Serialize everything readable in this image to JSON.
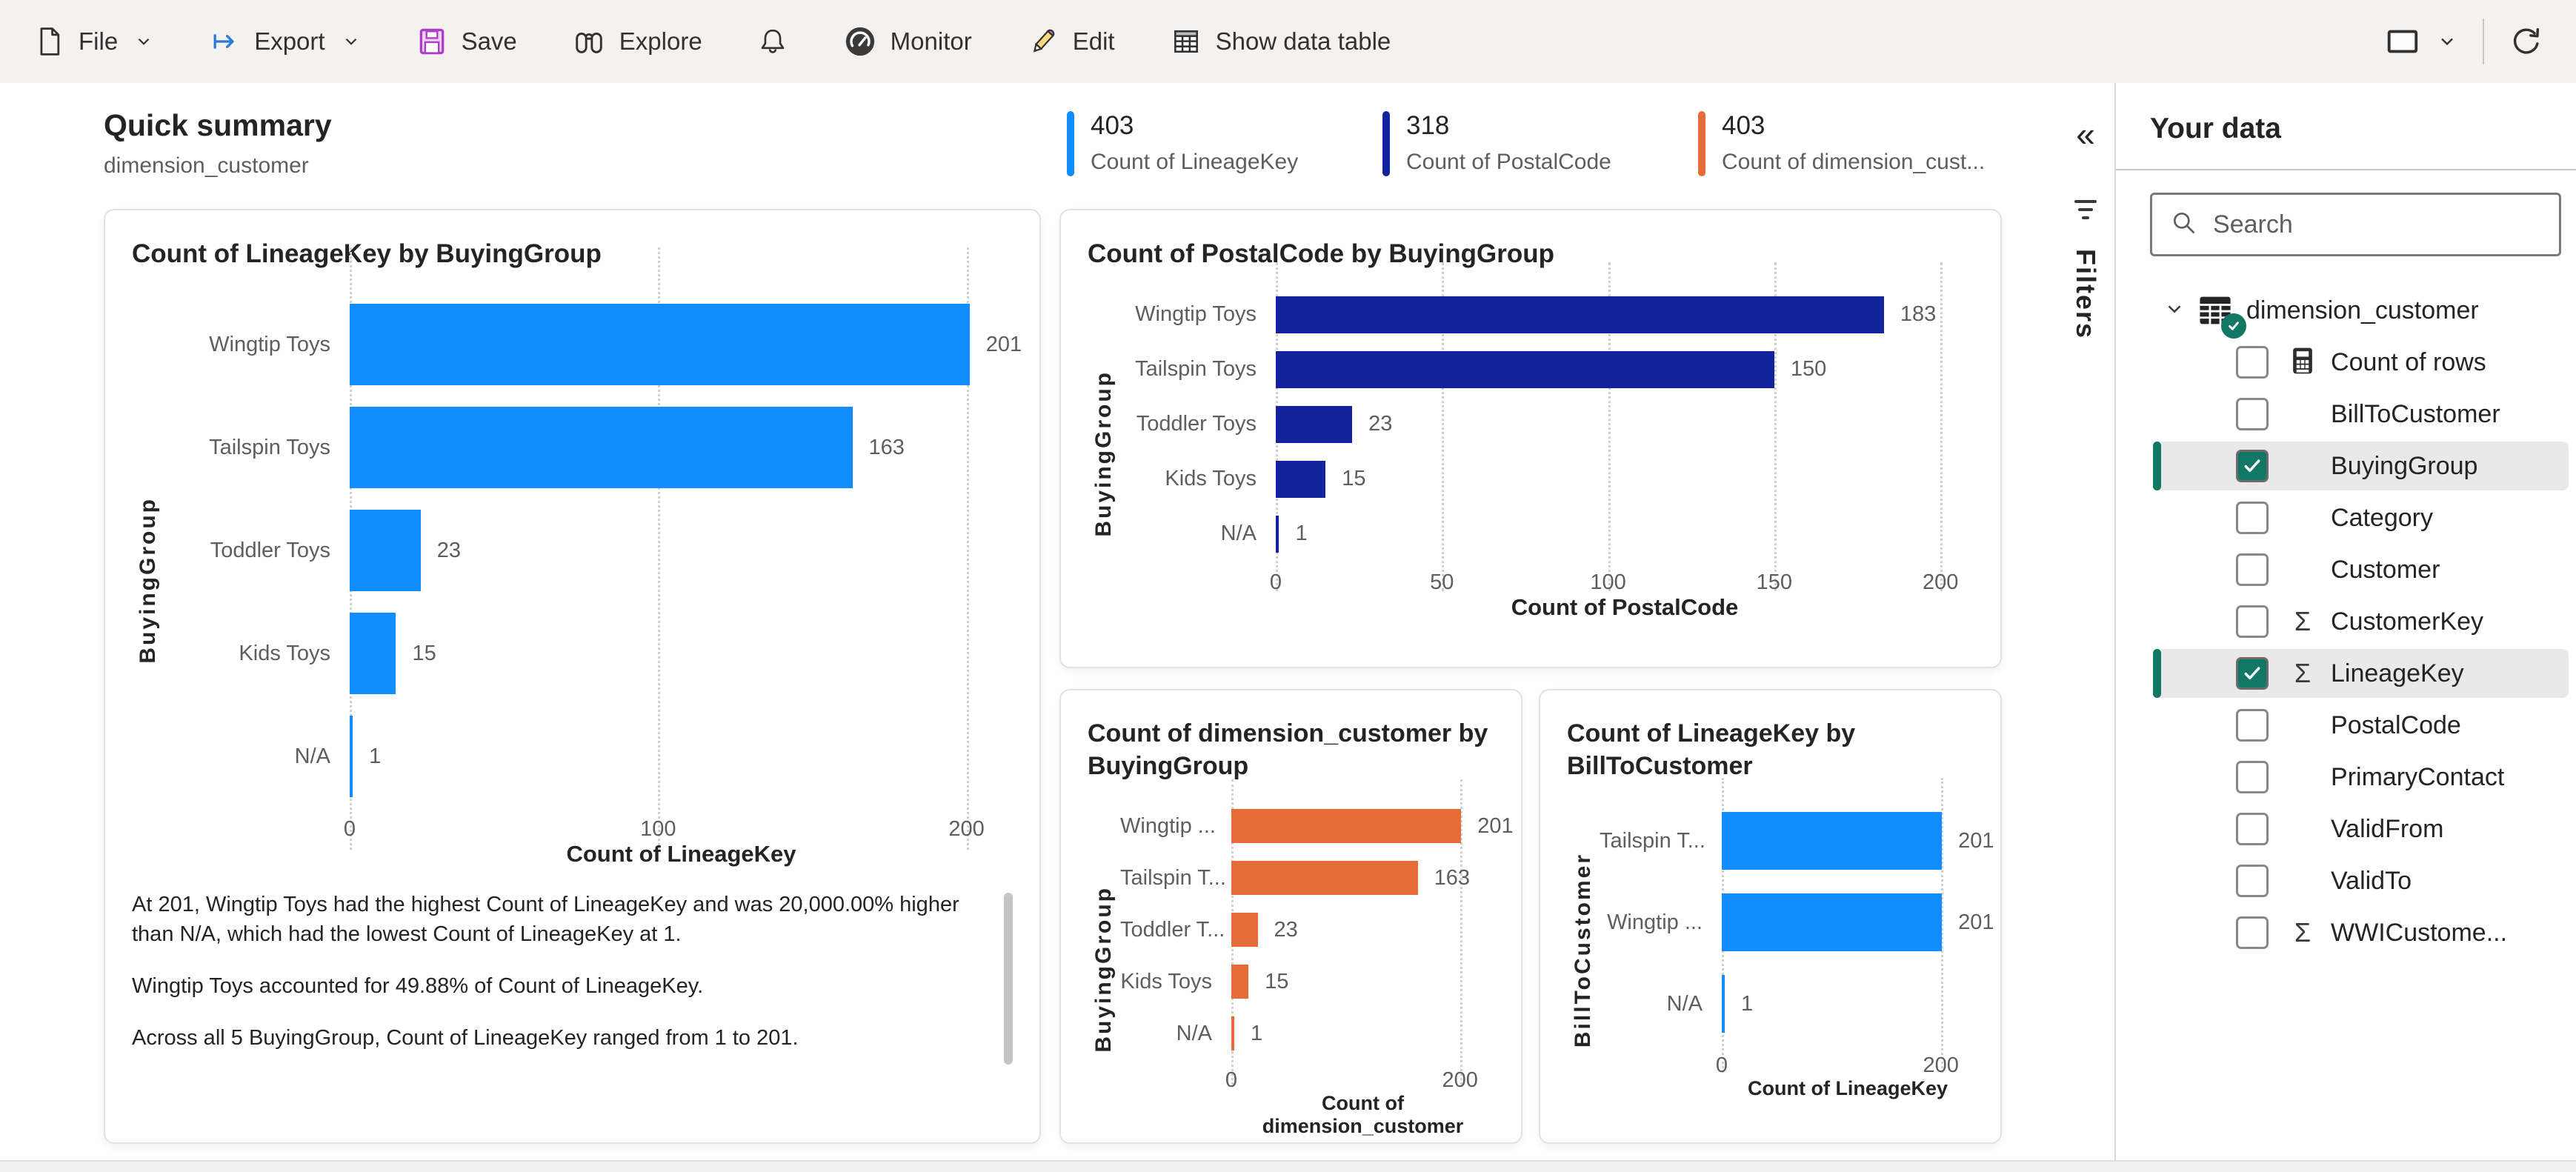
{
  "toolbar": {
    "file": "File",
    "export": "Export",
    "save": "Save",
    "explore": "Explore",
    "monitor": "Monitor",
    "edit": "Edit",
    "show_data_table": "Show data table"
  },
  "header": {
    "title": "Quick summary",
    "subtitle": "dimension_customer"
  },
  "kpis": [
    {
      "value": "403",
      "label": "Count of LineageKey",
      "color": "#118DFF"
    },
    {
      "value": "318",
      "label": "Count of PostalCode",
      "color": "#12239E"
    },
    {
      "value": "403",
      "label": "Count of dimension_cust...",
      "color": "#E66C37"
    }
  ],
  "chart_data": [
    {
      "type": "bar",
      "orientation": "horizontal",
      "title": "Count of LineageKey by BuyingGroup",
      "categories": [
        "Wingtip Toys",
        "Tailspin Toys",
        "Toddler Toys",
        "Kids Toys",
        "N/A"
      ],
      "values": [
        201,
        163,
        23,
        15,
        1
      ],
      "xlabel": "Count of LineageKey",
      "ylabel": "BuyingGroup",
      "xticks": [
        0,
        100,
        200
      ],
      "xmax": 215,
      "grid": "dotted-vertical",
      "value_labels": true,
      "bar_color": "#118DFF"
    },
    {
      "type": "bar",
      "orientation": "horizontal",
      "title": "Count of PostalCode by BuyingGroup",
      "categories": [
        "Wingtip Toys",
        "Tailspin Toys",
        "Toddler Toys",
        "Kids Toys",
        "N/A"
      ],
      "values": [
        183,
        150,
        23,
        15,
        1
      ],
      "xlabel": "Count of PostalCode",
      "ylabel": "BuyingGroup",
      "xticks": [
        0,
        50,
        100,
        150,
        200
      ],
      "xmax": 210,
      "grid": "dotted-vertical",
      "value_labels": true,
      "bar_color": "#12239E"
    },
    {
      "type": "bar",
      "orientation": "horizontal",
      "title": "Count of dimension_customer by BuyingGroup",
      "categories": [
        "Wingtip ...",
        "Tailspin T...",
        "Toddler T...",
        "Kids Toys",
        "N/A"
      ],
      "values": [
        201,
        163,
        23,
        15,
        1
      ],
      "xlabel": "Count of dimension_customer",
      "ylabel": "BuyingGroup",
      "xticks": [
        0,
        200
      ],
      "xmax": 230,
      "grid": "dotted-vertical",
      "value_labels": true,
      "bar_color": "#E66C37"
    },
    {
      "type": "bar",
      "orientation": "horizontal",
      "title": "Count of LineageKey by BillToCustomer",
      "categories": [
        "Tailspin T...",
        "Wingtip ...",
        "N/A"
      ],
      "values": [
        201,
        201,
        1
      ],
      "xlabel": "Count of LineageKey",
      "ylabel": "BillToCustomer",
      "xticks": [
        0,
        200
      ],
      "xmax": 230,
      "grid": "dotted-vertical",
      "value_labels": true,
      "bar_color": "#118DFF"
    }
  ],
  "insights": [
    "At 201, Wingtip Toys had the highest Count of LineageKey and was 20,000.00% higher than N/A, which had the lowest Count of LineageKey at 1.",
    "Wingtip Toys accounted for 49.88% of Count of LineageKey.",
    "Across all 5 BuyingGroup, Count of LineageKey ranged from 1 to 201."
  ],
  "filters_panel": {
    "label": "Filters"
  },
  "sidebar": {
    "title": "Your data",
    "search_placeholder": "Search",
    "root": {
      "label": "dimension_customer",
      "checked": true,
      "expanded": true
    },
    "fields": [
      {
        "label": "Count of rows",
        "icon": "calculator",
        "checked": false,
        "highlighted": false
      },
      {
        "label": "BillToCustomer",
        "icon": null,
        "checked": false,
        "highlighted": false
      },
      {
        "label": "BuyingGroup",
        "icon": null,
        "checked": true,
        "highlighted": true
      },
      {
        "label": "Category",
        "icon": null,
        "checked": false,
        "highlighted": false
      },
      {
        "label": "Customer",
        "icon": null,
        "checked": false,
        "highlighted": false
      },
      {
        "label": "CustomerKey",
        "icon": "sigma",
        "checked": false,
        "highlighted": false
      },
      {
        "label": "LineageKey",
        "icon": "sigma",
        "checked": true,
        "highlighted": true
      },
      {
        "label": "PostalCode",
        "icon": null,
        "checked": false,
        "highlighted": false
      },
      {
        "label": "PrimaryContact",
        "icon": null,
        "checked": false,
        "highlighted": false
      },
      {
        "label": "ValidFrom",
        "icon": null,
        "checked": false,
        "highlighted": false
      },
      {
        "label": "ValidTo",
        "icon": null,
        "checked": false,
        "highlighted": false
      },
      {
        "label": "WWICustome...",
        "icon": "sigma",
        "checked": false,
        "highlighted": false
      }
    ]
  },
  "colors": {
    "teal_accent": "#117865",
    "bar_blue": "#118DFF",
    "bar_navy": "#12239E",
    "bar_orange": "#E66C37",
    "toolbar_bg": "#F3F2F1",
    "text_dark": "#252423",
    "text_gray": "#605E5C"
  }
}
